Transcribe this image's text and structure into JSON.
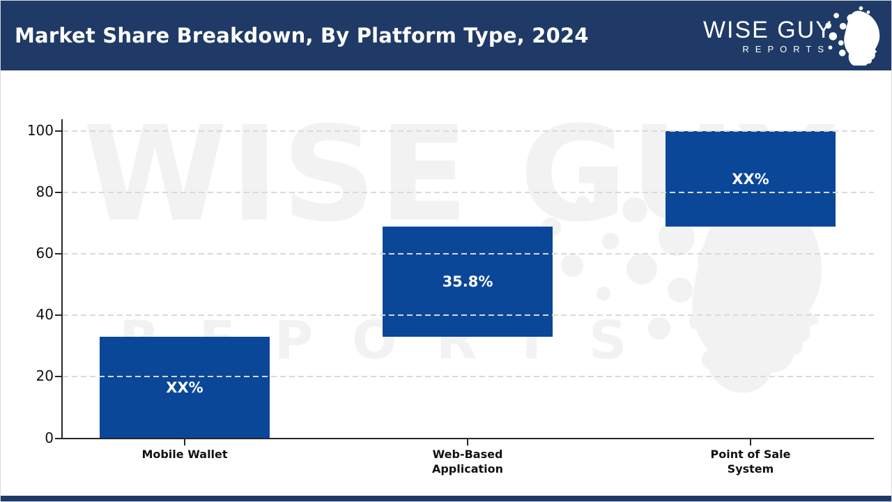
{
  "header": {
    "title": "Market Share Breakdown, By Platform Type, 2024",
    "logo": {
      "line1": "WISE GUY",
      "line2": "REPORTS"
    }
  },
  "watermark": {
    "line1": "WISE GUY",
    "line2": "REPORTS"
  },
  "colors": {
    "header_bg": "#1f3a66",
    "bar_fill": "#0b4799",
    "bar_label": "#ffffff",
    "gridline": "#d9d9d9",
    "axis": "#262626",
    "watermark": "#f2f2f2"
  },
  "chart_data": {
    "type": "bar",
    "subtype": "waterfall-floating-segments",
    "title": "Market Share Breakdown, By Platform Type, 2024",
    "xlabel": "",
    "ylabel": "",
    "ylim": [
      0,
      100
    ],
    "yticks": [
      0,
      20,
      40,
      60,
      80,
      100
    ],
    "grid": "horizontal-dashed",
    "legend": "none",
    "categories": [
      {
        "label": "Mobile Wallet",
        "lines": [
          "Mobile Wallet"
        ]
      },
      {
        "label": "Web-Based Application",
        "lines": [
          "Web-Based",
          "Application"
        ]
      },
      {
        "label": "Point of Sale System",
        "lines": [
          "Point of Sale",
          "System"
        ]
      }
    ],
    "series": [
      {
        "name": "Market Share",
        "segments": [
          {
            "category": "Mobile Wallet",
            "start": 0,
            "end": 33,
            "label": "XX%"
          },
          {
            "category": "Web-Based Application",
            "start": 33,
            "end": 68.8,
            "label": "35.8%"
          },
          {
            "category": "Point of Sale System",
            "start": 68.8,
            "end": 100,
            "label": "XX%"
          }
        ]
      }
    ]
  }
}
